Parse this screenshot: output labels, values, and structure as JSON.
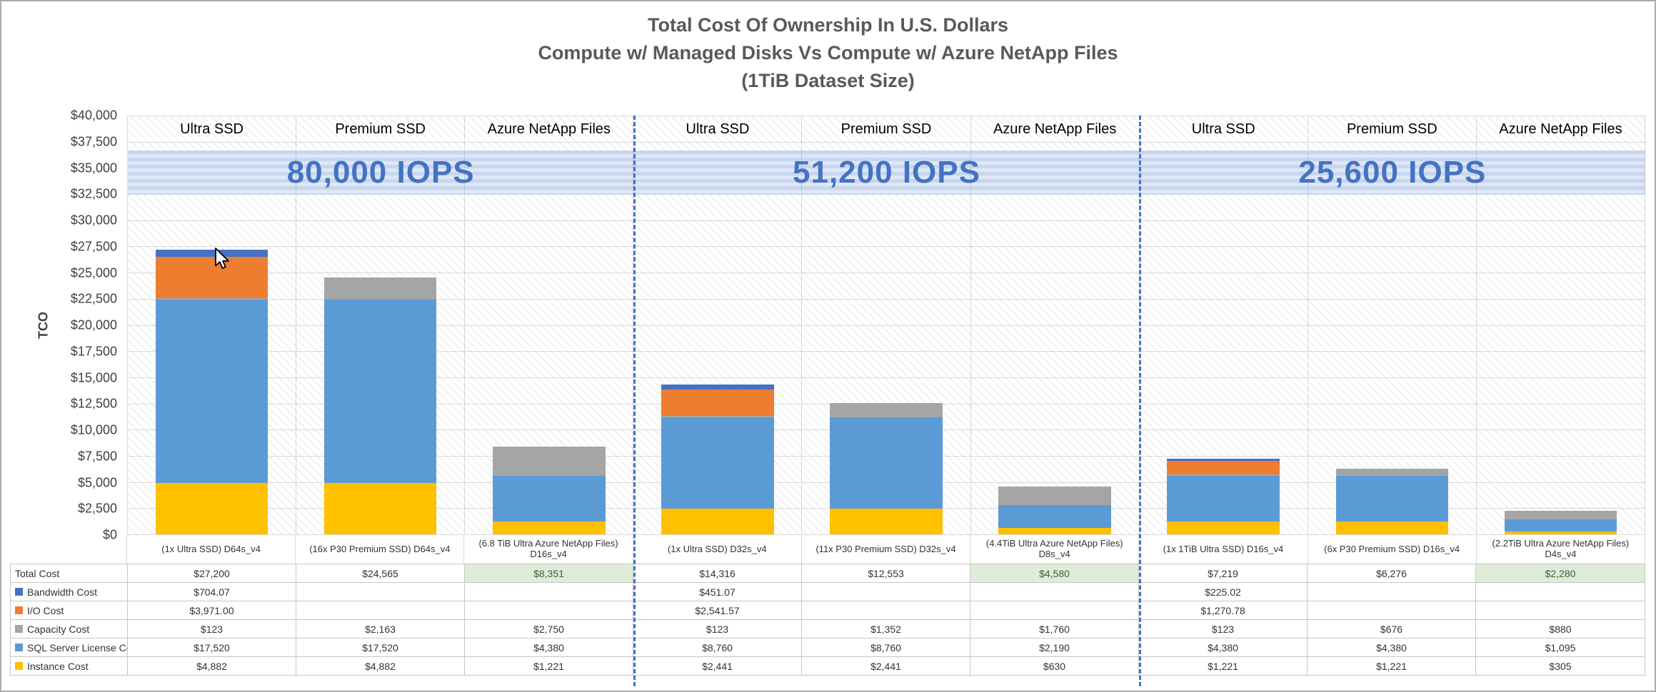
{
  "title": {
    "line1": "Total Cost Of Ownership In U.S. Dollars",
    "line2": "Compute w/ Managed Disks Vs Compute w/ Azure NetApp Files",
    "line3": "(1TiB Dataset Size)"
  },
  "y_axis": {
    "title": "TCO",
    "min": 0,
    "max": 40000,
    "step": 2500,
    "tick_prefix": "$"
  },
  "chart_data": {
    "type": "bar",
    "stacked": true,
    "title": "Total Cost Of Ownership In U.S. Dollars — Compute w/ Managed Disks Vs Compute w/ Azure NetApp Files (1TiB Dataset Size)",
    "ylabel": "TCO",
    "ylim": [
      0,
      40000
    ],
    "y_tick_step": 2500,
    "grid": true,
    "legend_position": "table-below",
    "groups": [
      {
        "iops_label": "80,000 IOPS",
        "column_headers": [
          "Ultra SSD",
          "Premium SSD",
          "Azure NetApp Files"
        ]
      },
      {
        "iops_label": "51,200 IOPS",
        "column_headers": [
          "Ultra SSD",
          "Premium SSD",
          "Azure NetApp Files"
        ]
      },
      {
        "iops_label": "25,600 IOPS",
        "column_headers": [
          "Ultra SSD",
          "Premium SSD",
          "Azure NetApp Files"
        ]
      }
    ],
    "categories": [
      "(1x Ultra SSD) D64s_v4",
      "(16x P30 Premium SSD) D64s_v4",
      "(6.8 TiB Ultra Azure NetApp Files) D16s_v4",
      "(1x Ultra SSD) D32s_v4",
      "(11x P30 Premium SSD) D32s_v4",
      "(4.4TiB Ultra Azure NetApp Files) D8s_v4",
      "(1x 1TiB Ultra SSD) D16s_v4",
      "(6x P30 Premium SSD) D16s_v4",
      "(2.2TiB Ultra Azure NetApp Files) D4s_v4"
    ],
    "series": [
      {
        "name": "Instance Cost",
        "color": "#FFC000",
        "values": [
          4882,
          4882,
          1221,
          2441,
          2441,
          630,
          1221,
          1221,
          305
        ]
      },
      {
        "name": "SQL Server License Cost",
        "color": "#5B9BD5",
        "values": [
          17520,
          17520,
          4380,
          8760,
          8760,
          2190,
          4380,
          4380,
          1095
        ]
      },
      {
        "name": "Capacity Cost",
        "color": "#A5A5A5",
        "values": [
          123,
          2163,
          2750,
          123,
          1352,
          1760,
          123,
          676,
          880
        ]
      },
      {
        "name": "I/O Cost",
        "color": "#ED7D31",
        "values": [
          3971,
          0,
          0,
          2541.57,
          0,
          0,
          1270.78,
          0,
          0
        ]
      },
      {
        "name": "Bandwidth Cost",
        "color": "#4472C4",
        "values": [
          704.07,
          0,
          0,
          451.07,
          0,
          0,
          225.02,
          0,
          0
        ]
      }
    ],
    "totals": [
      27200,
      24565,
      8351,
      14316,
      12553,
      4580,
      7219,
      6276,
      2280
    ]
  },
  "table": {
    "rows": [
      {
        "label": "Total Cost",
        "swatch": null,
        "values": [
          "$27,200",
          "$24,565",
          "$8,351",
          "$14,316",
          "$12,553",
          "$4,580",
          "$7,219",
          "$6,276",
          "$2,280"
        ],
        "highlight_cols": [
          2,
          5,
          8
        ]
      },
      {
        "label": "Bandwidth Cost",
        "swatch": "#4472C4",
        "values": [
          "$704.07",
          "",
          "",
          "$451.07",
          "",
          "",
          "$225.02",
          "",
          ""
        ]
      },
      {
        "label": "I/O Cost",
        "swatch": "#ED7D31",
        "values": [
          "$3,971.00",
          "",
          "",
          "$2,541.57",
          "",
          "",
          "$1,270.78",
          "",
          ""
        ]
      },
      {
        "label": "Capacity Cost",
        "swatch": "#A5A5A5",
        "values": [
          "$123",
          "$2,163",
          "$2,750",
          "$123",
          "$1,352",
          "$1,760",
          "$123",
          "$676",
          "$880"
        ]
      },
      {
        "label": "SQL Server License Cost",
        "swatch": "#5B9BD5",
        "values": [
          "$17,520",
          "$17,520",
          "$4,380",
          "$8,760",
          "$8,760",
          "$2,190",
          "$4,380",
          "$4,380",
          "$1,095"
        ]
      },
      {
        "label": "Instance Cost",
        "swatch": "#FFC000",
        "values": [
          "$4,882",
          "$4,882",
          "$1,221",
          "$2,441",
          "$2,441",
          "$630",
          "$1,221",
          "$1,221",
          "$305"
        ]
      }
    ]
  },
  "colors": {
    "accent_blue": "#4472C4",
    "band_light": "#DEE7F6",
    "band_dark": "#C9D6EE",
    "highlight_green": "#DFEDD8",
    "title_gray": "#595959"
  }
}
